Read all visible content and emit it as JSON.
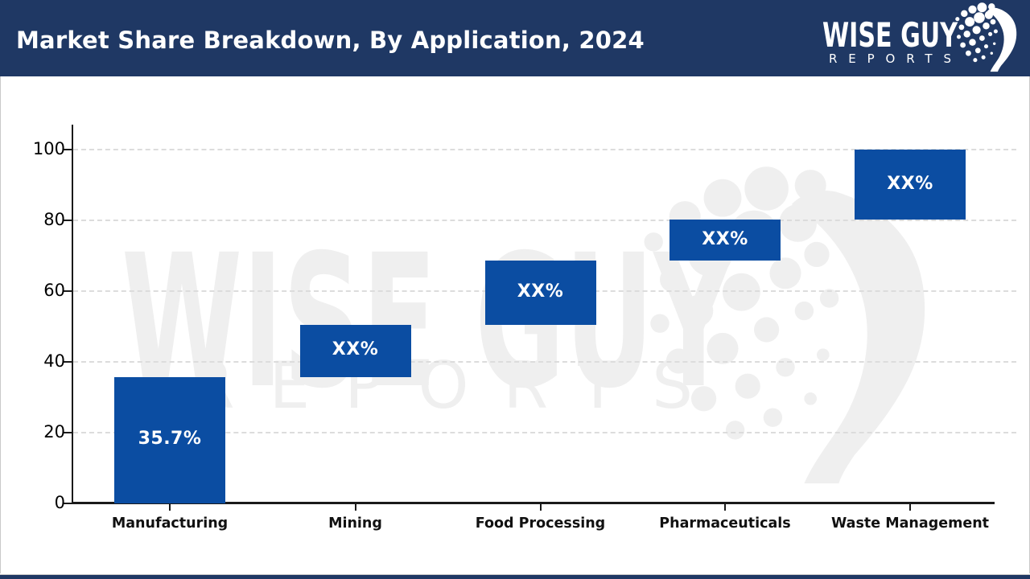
{
  "header": {
    "title": "Market Share Breakdown, By Application, 2024",
    "background": "#1f3864",
    "logo": {
      "line1": "WISE GUY",
      "line2": "REPORTS"
    }
  },
  "watermark": {
    "line1": "WISE GUY",
    "line2": "REPORTS"
  },
  "colors": {
    "header_navy": "#1f3864",
    "bar_blue": "#0b4da2",
    "watermark_gray": "#efefef",
    "grid_gray": "#dcdcdc",
    "axis_black": "#1a1a1a"
  },
  "chart_data": {
    "type": "bar",
    "subtype": "waterfall",
    "title": "Market Share Breakdown, By Application, 2024",
    "categories": [
      "Manufacturing",
      "Mining",
      "Food Processing",
      "Pharmaceuticals",
      "Waste Management"
    ],
    "segments": [
      {
        "category": "Manufacturing",
        "start": 0,
        "end": 35.7,
        "label": "35.7%"
      },
      {
        "category": "Mining",
        "start": 35.7,
        "end": 50.5,
        "label": "XX%"
      },
      {
        "category": "Food Processing",
        "start": 50.5,
        "end": 68.6,
        "label": "XX%"
      },
      {
        "category": "Pharmaceuticals",
        "start": 68.6,
        "end": 80.2,
        "label": "XX%"
      },
      {
        "category": "Waste Management",
        "start": 80.2,
        "end": 100,
        "label": "XX%"
      }
    ],
    "xlabel": "",
    "ylabel": "",
    "ylim": [
      0,
      107
    ],
    "yticks": [
      0,
      20,
      40,
      60,
      80,
      100
    ],
    "grid": "horizontal-dashed",
    "legend": "none",
    "bar_color": "#0b4da2"
  }
}
